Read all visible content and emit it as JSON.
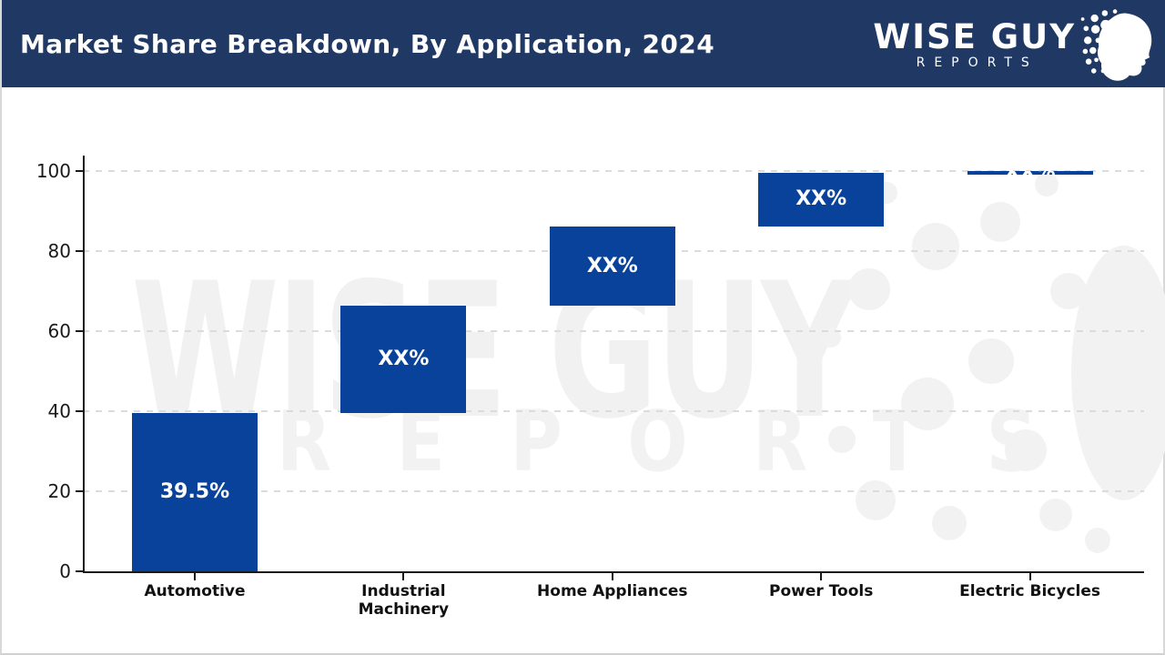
{
  "header": {
    "title": "Market Share Breakdown, By Application, 2024",
    "bg_color": "#1f3864",
    "logo": {
      "line1": "WISE GUY",
      "line2": "REPORTS"
    }
  },
  "watermark": {
    "line1": "WISE GUY",
    "line2": "R E P O R T S"
  },
  "chart_data": {
    "type": "bar",
    "subtype": "waterfall",
    "title": "Market Share Breakdown, By Application, 2024",
    "categories": [
      "Automotive",
      "Industrial Machinery",
      "Home Appliances",
      "Power Tools",
      "Electric Bicycles"
    ],
    "series": [
      {
        "name": "Market Share",
        "segments": [
          {
            "category": "Automotive",
            "start": 0,
            "end": 39.5,
            "value": 39.5,
            "label": "39.5%"
          },
          {
            "category": "Industrial Machinery",
            "start": 39.5,
            "end": 66.3,
            "value": 26.8,
            "label": "XX%"
          },
          {
            "category": "Home Appliances",
            "start": 66.3,
            "end": 86.1,
            "value": 19.8,
            "label": "XX%"
          },
          {
            "category": "Power Tools",
            "start": 86.1,
            "end": 99.5,
            "value": 13.4,
            "label": "XX%"
          },
          {
            "category": "Electric Bicycles",
            "start": 99.5,
            "end": 100,
            "value": 0.5,
            "label": "XX%"
          }
        ]
      }
    ],
    "xlabel": "",
    "ylabel": "",
    "ylim": [
      0,
      100
    ],
    "yticks": [
      0,
      20,
      40,
      60,
      80,
      100
    ],
    "grid": "dashed horizontal",
    "legend": "none",
    "bar_color": "#08429b",
    "bar_label_color": "#ffffff",
    "axis_color": "#1a1a1a"
  }
}
